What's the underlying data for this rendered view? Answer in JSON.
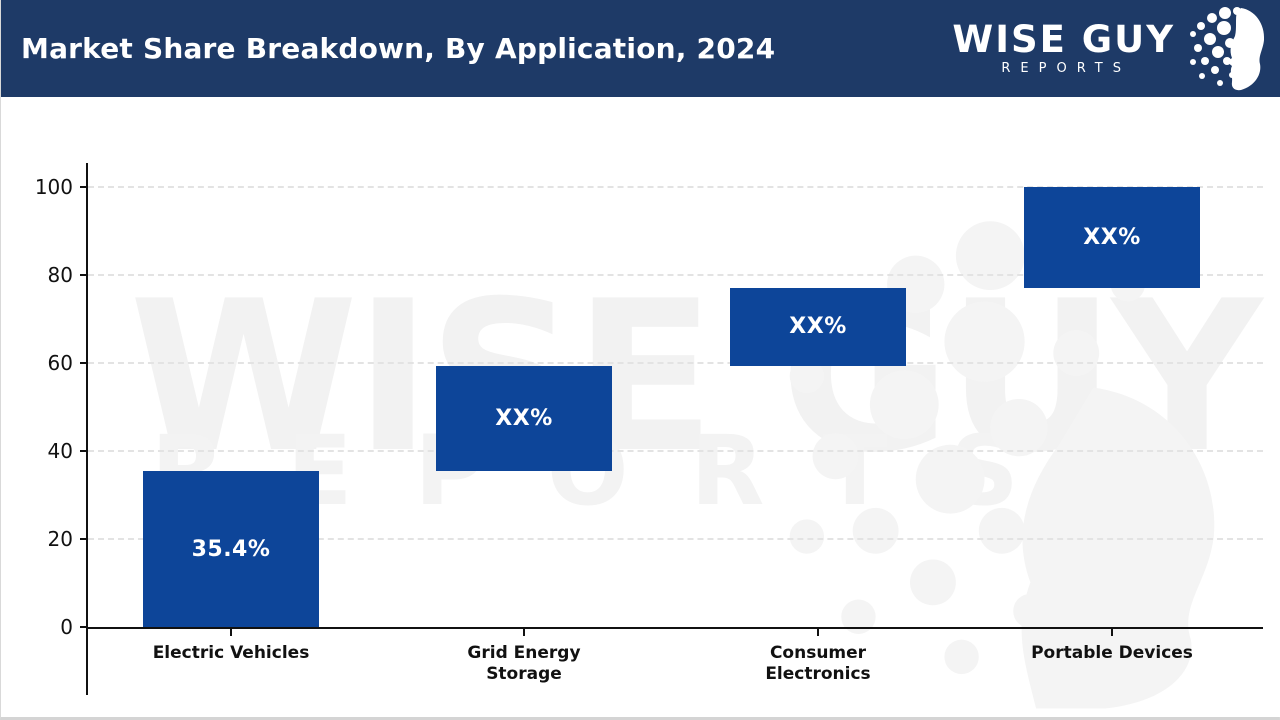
{
  "header": {
    "title": "Market Share Breakdown, By Application, 2024",
    "logo": {
      "line1": "WISE GUY",
      "line2": "REPORTS"
    }
  },
  "watermark": {
    "line1": "WISE GUY",
    "line2": "REPORTS"
  },
  "chart_data": {
    "type": "bar",
    "subtype": "waterfall",
    "title": "Market Share Breakdown, By Application, 2024",
    "categories": [
      "Electric Vehicles",
      "Grid Energy Storage",
      "Consumer Electronics",
      "Portable Devices"
    ],
    "category_lines": [
      [
        "Electric Vehicles"
      ],
      [
        "Grid Energy",
        "Storage"
      ],
      [
        "Consumer",
        "Electronics"
      ],
      [
        "Portable Devices"
      ]
    ],
    "segments": [
      {
        "category": "Electric Vehicles",
        "start": 0,
        "end": 35.4,
        "label": "35.4%"
      },
      {
        "category": "Grid Energy Storage",
        "start": 35.4,
        "end": 59.4,
        "label": "XX%"
      },
      {
        "category": "Consumer Electronics",
        "start": 59.4,
        "end": 77.0,
        "label": "XX%"
      },
      {
        "category": "Portable Devices",
        "start": 77.0,
        "end": 100.0,
        "label": "XX%"
      }
    ],
    "ylim": [
      0,
      100
    ],
    "yticks": [
      0,
      20,
      40,
      60,
      80,
      100
    ],
    "xlabel": "",
    "ylabel": "",
    "grid": "horizontal-dashed",
    "legend": "none",
    "bar_color": "#0d4599",
    "bar_label_color": "#ffffff",
    "axis_color": "#111111",
    "header_color": "#1e3a67"
  }
}
